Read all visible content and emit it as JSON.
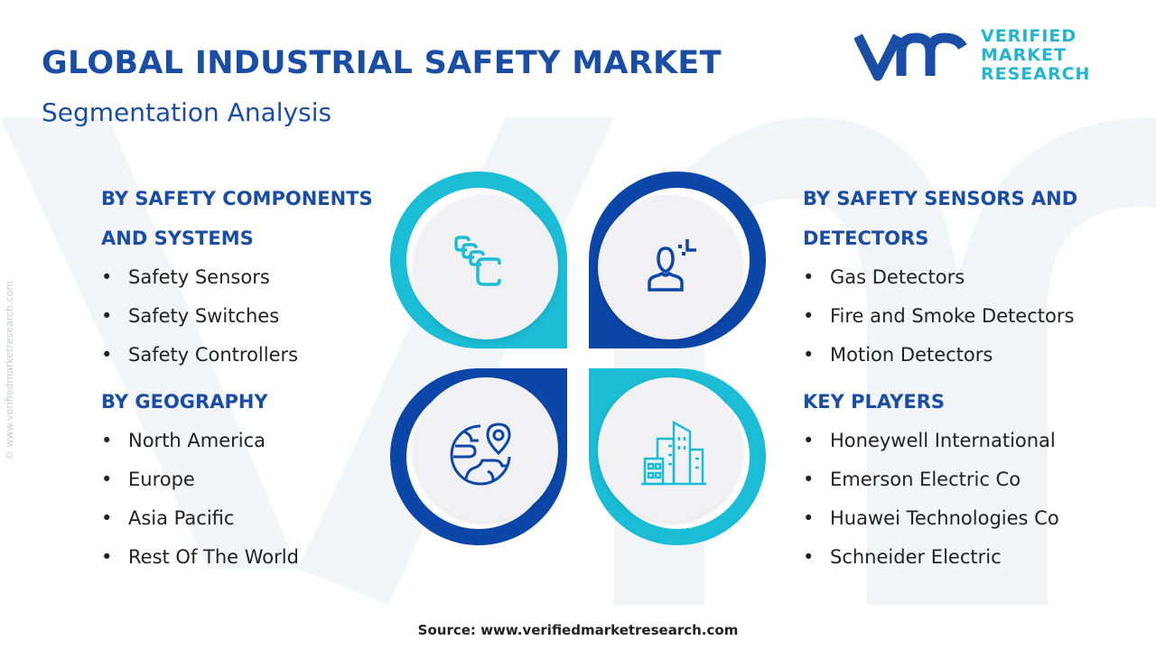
{
  "header": {
    "title": "GLOBAL INDUSTRIAL SAFETY MARKET",
    "subtitle": "Segmentation Analysis"
  },
  "logo": {
    "line1": "VERIFIED",
    "line2": "MARKET",
    "line3": "RESEARCH",
    "registered": "®"
  },
  "watermark": "© www.verifiedmarketresearch.com",
  "colors": {
    "cyan": "#1bbcd6",
    "blue": "#0c46a8",
    "heading": "#1a4ea6"
  },
  "segments": {
    "components": {
      "heading1": "BY SAFETY COMPONENTS",
      "heading2": "AND SYSTEMS",
      "items": [
        "Safety Sensors",
        "Safety Switches",
        "Safety Controllers"
      ],
      "icon": "modules-icon"
    },
    "geography": {
      "heading": "BY GEOGRAPHY",
      "items": [
        "North America",
        "Europe",
        "Asia Pacific",
        "Rest Of The World"
      ],
      "icon": "globe-location-icon"
    },
    "sensors": {
      "heading1": "BY SAFETY SENSORS AND",
      "heading2": "DETECTORS",
      "items": [
        "Gas Detectors",
        "Fire and Smoke Detectors",
        "Motion Detectors"
      ],
      "icon": "person-scan-icon"
    },
    "players": {
      "heading": "KEY PLAYERS",
      "items": [
        "Honeywell International",
        "Emerson Electric Co",
        "Huawei Technologies Co",
        "Schneider Electric"
      ],
      "icon": "buildings-icon"
    }
  },
  "source": "Source: www.verifiedmarketresearch.com"
}
